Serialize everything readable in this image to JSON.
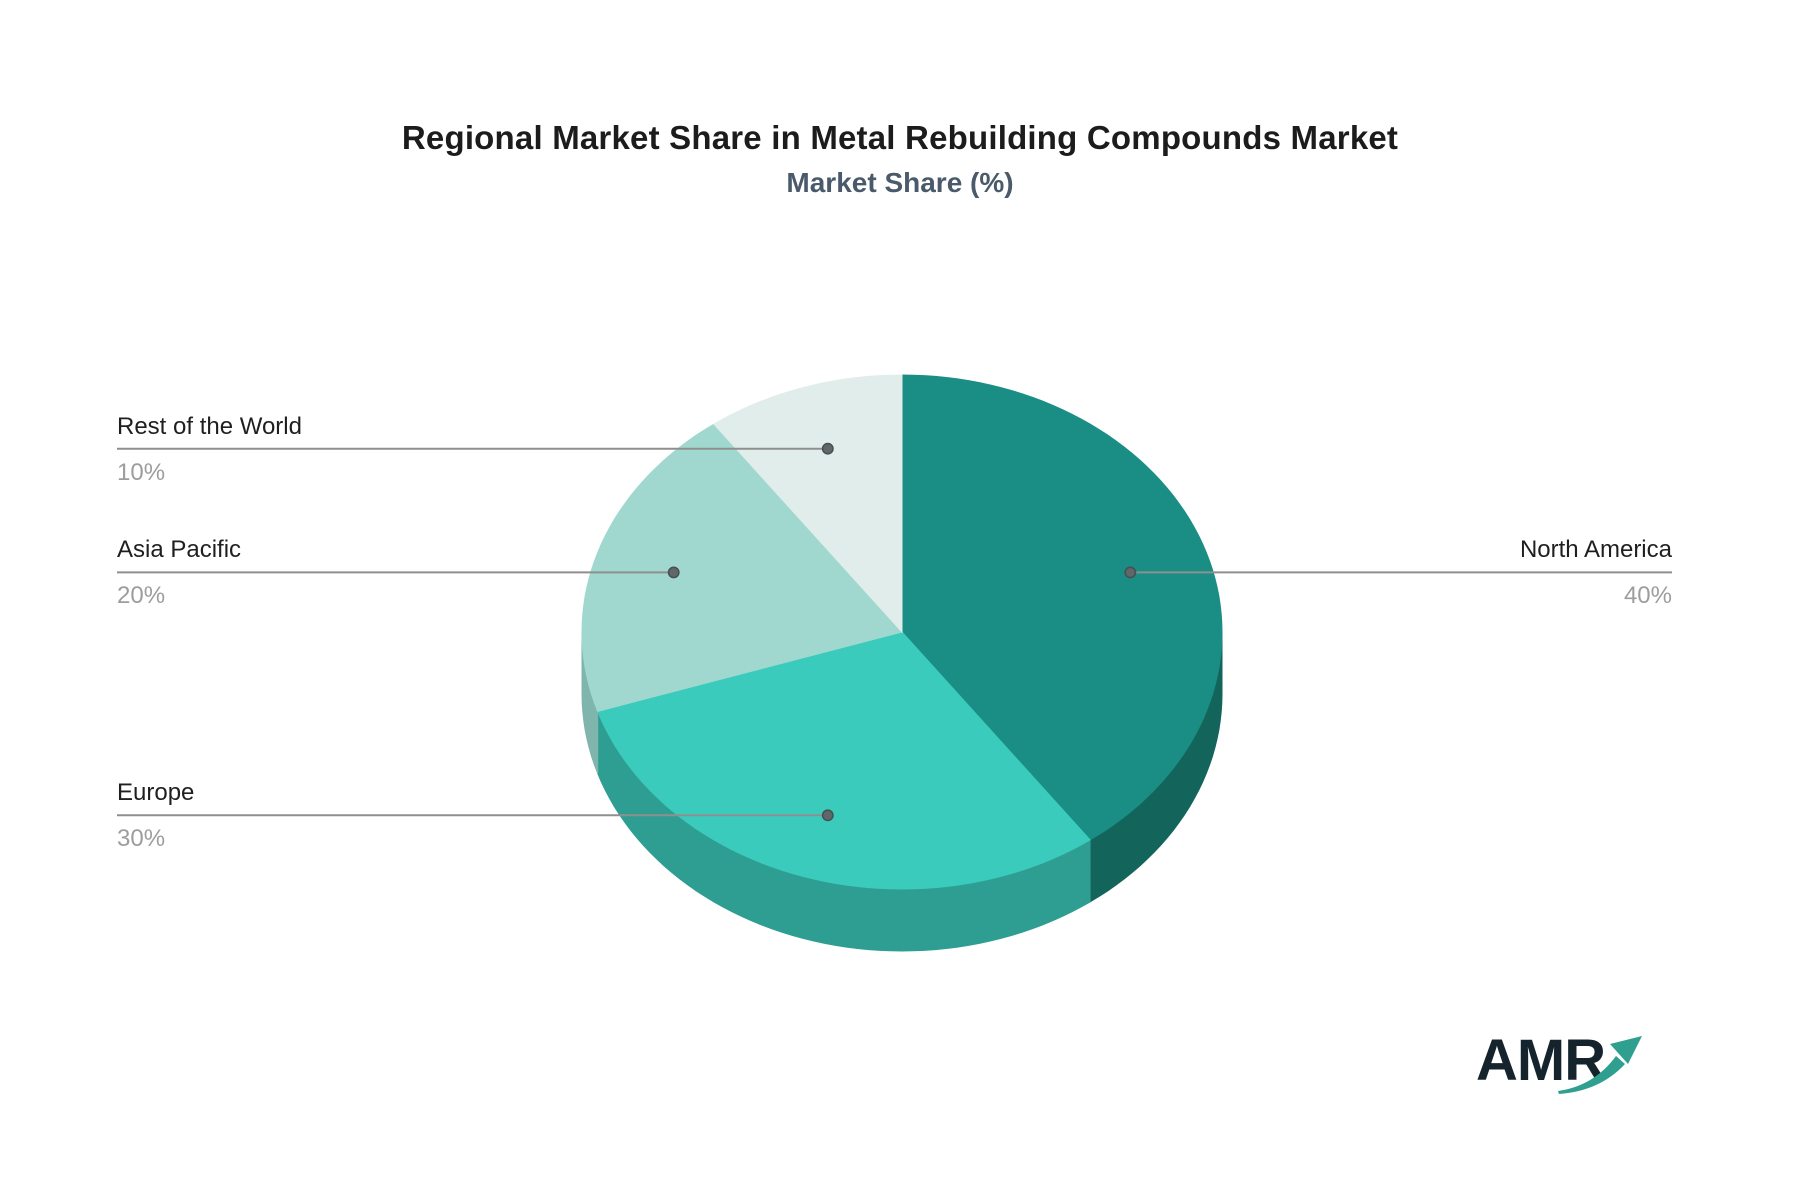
{
  "header": {
    "title": "Regional Market Share in Metal Rebuilding Compounds Market",
    "subtitle": "Market Share (%)"
  },
  "chart_data": {
    "type": "pie",
    "title": "Regional Market Share in Metal Rebuilding Compounds Market",
    "subtitle": "Market Share (%)",
    "unit": "%",
    "style": "3d-pie",
    "start_angle": "12-oclock-clockwise",
    "legend": "none",
    "slices": [
      {
        "label": "North America",
        "value": 40,
        "pct_label": "40%",
        "color": "#1a8e84",
        "side_color": "#13655c",
        "label_side": "right"
      },
      {
        "label": "Europe",
        "value": 30,
        "pct_label": "30%",
        "color": "#3bcbbc",
        "side_color": "#2f9e92",
        "label_side": "left"
      },
      {
        "label": "Asia Pacific",
        "value": 20,
        "pct_label": "20%",
        "color": "#a0d8d0",
        "side_color": "#7fb5ad",
        "label_side": "left"
      },
      {
        "label": "Rest of the World",
        "value": 10,
        "pct_label": "10%",
        "color": "#e0edeb",
        "side_color": "#c2d9d5",
        "label_side": "left"
      }
    ],
    "label_style": {
      "name_color": "#1f1f1f",
      "pct_color": "#9d9d9d",
      "leader_line_color": "#8f8f8f",
      "leader_dot_color": "#5f6768"
    }
  },
  "logo": {
    "text": "AMR",
    "text_color": "#15232d",
    "arrow_color": "#2f9f90"
  }
}
